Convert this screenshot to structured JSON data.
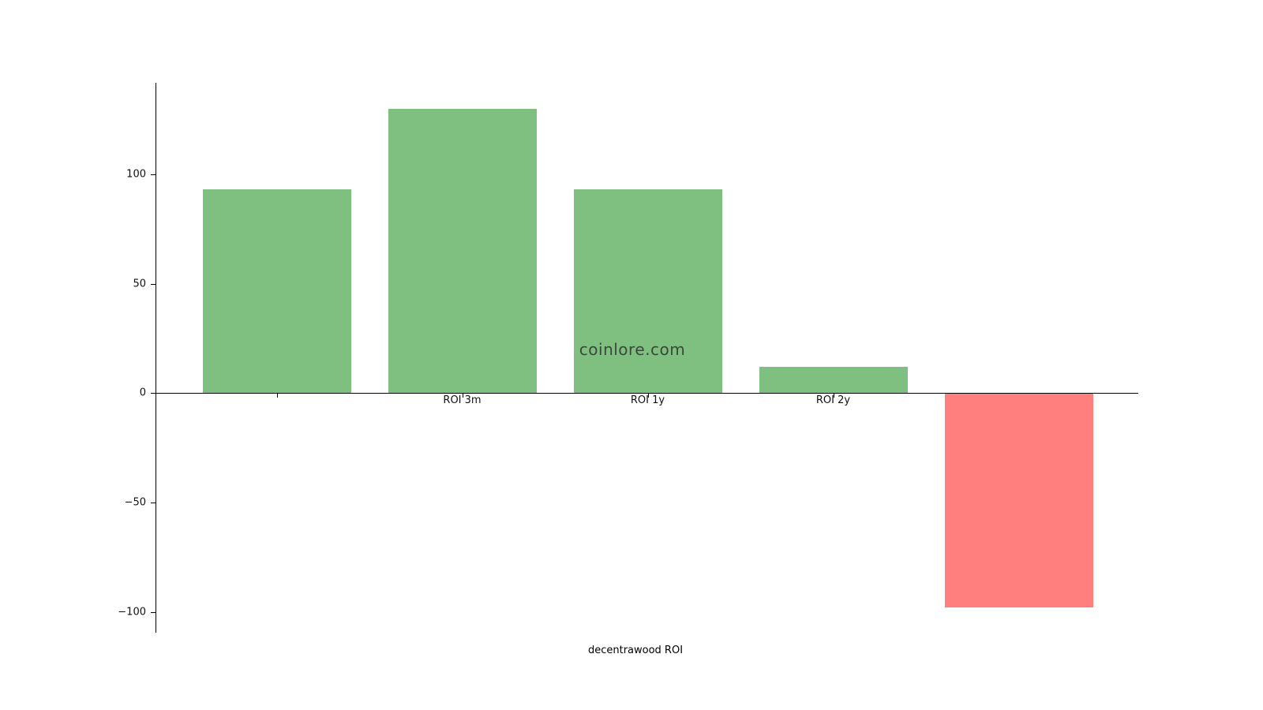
{
  "page": {
    "background": "#ffffff"
  },
  "chart_data": {
    "type": "bar",
    "title": "decentrawood ROI",
    "watermark": "coinlore.com",
    "categories": [
      "",
      "ROI 3m",
      "ROI 1y",
      "ROI 2y",
      ""
    ],
    "values": [
      93,
      130,
      93,
      12,
      -98
    ],
    "bar_colors": [
      "#7fbf7f",
      "#7fbf7f",
      "#7fbf7f",
      "#7fbf7f",
      "#ff7f7f"
    ],
    "positive_color": "#7fbf7f",
    "negative_color": "#ff7f7f",
    "axis_color": "#000000",
    "tick_text_color": "#111111",
    "watermark_color": "#282828",
    "yticks": [
      {
        "value": 100,
        "label": "100"
      },
      {
        "value": 50,
        "label": "50"
      },
      {
        "value": 0,
        "label": "0"
      },
      {
        "value": -50,
        "label": "−50"
      },
      {
        "value": -100,
        "label": "−100"
      }
    ],
    "ylim": [
      -109.4,
      141.8
    ],
    "grid": false,
    "legend": false,
    "xlabel": "",
    "ylabel": ""
  }
}
